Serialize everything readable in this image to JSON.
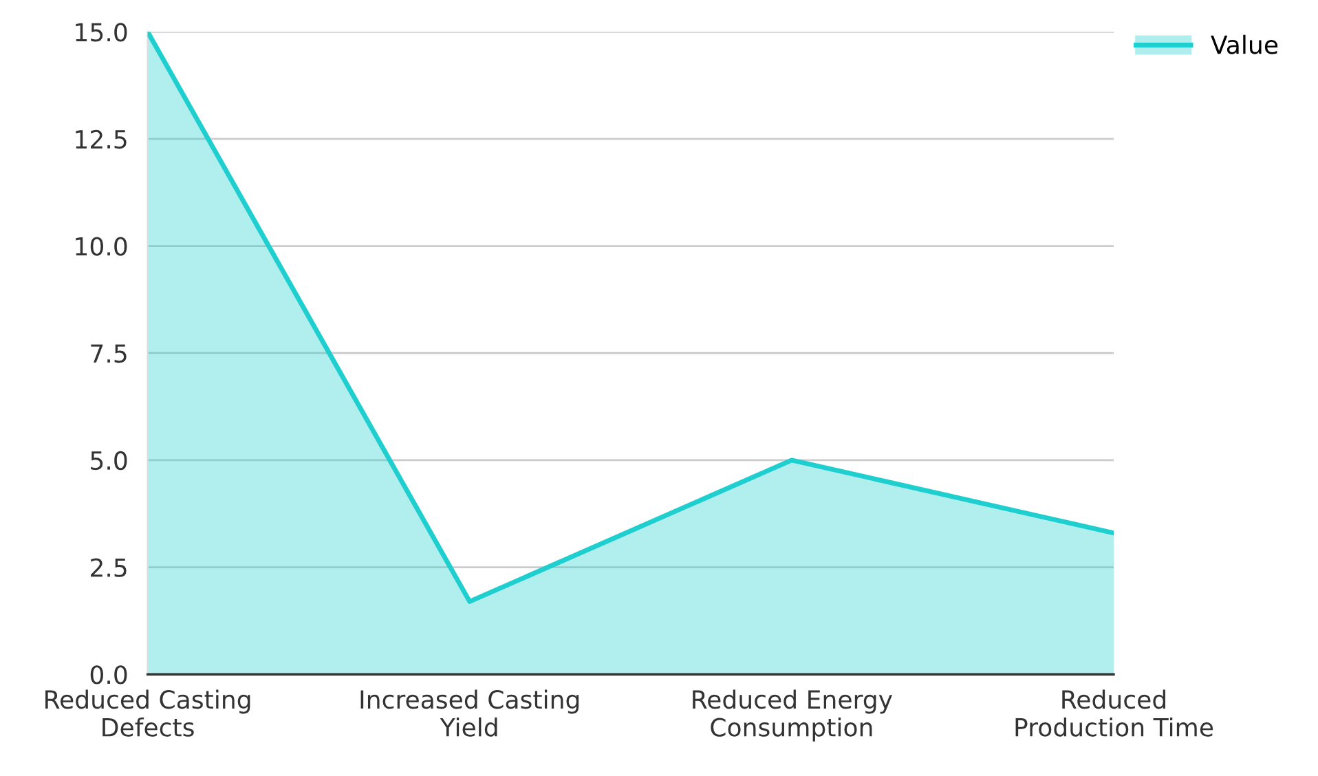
{
  "chart_data": {
    "type": "area",
    "categories": [
      "Reduced Casting\nDefects",
      "Increased Casting\nYield",
      "Reduced Energy\nConsumption",
      "Reduced\nProduction Time"
    ],
    "series": [
      {
        "name": "Value",
        "color": "#1fcfcf",
        "values": [
          15,
          1.7,
          5,
          3.3
        ]
      }
    ],
    "ylim": [
      0,
      15
    ],
    "yticks": [
      {
        "value": 0,
        "label": "0.0"
      },
      {
        "value": 2.5,
        "label": "2.5"
      },
      {
        "value": 5,
        "label": "5.0"
      },
      {
        "value": 7.5,
        "label": "7.5"
      },
      {
        "value": 10,
        "label": "10.0"
      },
      {
        "value": 12.5,
        "label": "12.5"
      },
      {
        "value": 15,
        "label": "15.0"
      }
    ],
    "grid": "y",
    "legend": "top right"
  }
}
